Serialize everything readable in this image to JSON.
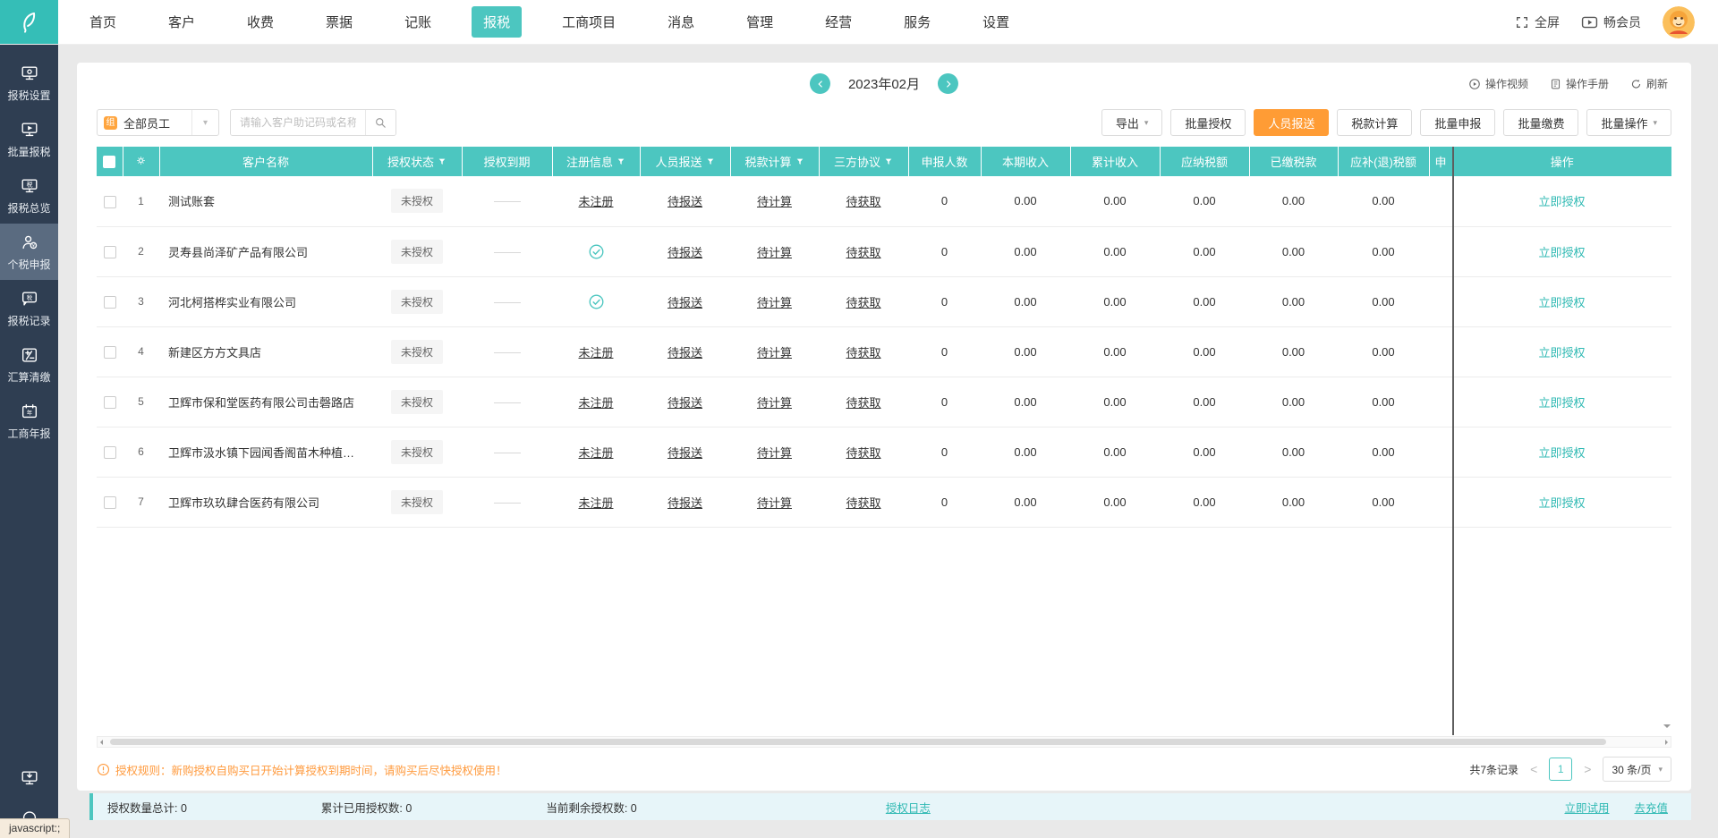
{
  "colors": {
    "accent": "#4CC6C0",
    "sidebar": "#2F3E52",
    "orange": "#FF9C35",
    "link_teal": "#2FB9B3",
    "notice_orange": "#FF9A3D",
    "footer_bg": "#E7F5F9"
  },
  "topnav": {
    "menu": [
      {
        "label": "首页",
        "active": false
      },
      {
        "label": "客户",
        "active": false
      },
      {
        "label": "收费",
        "active": false
      },
      {
        "label": "票据",
        "active": false
      },
      {
        "label": "记账",
        "active": false
      },
      {
        "label": "报税",
        "active": true
      },
      {
        "label": "工商项目",
        "active": false
      },
      {
        "label": "消息",
        "active": false
      },
      {
        "label": "管理",
        "active": false
      },
      {
        "label": "经营",
        "active": false
      },
      {
        "label": "服务",
        "active": false
      },
      {
        "label": "设置",
        "active": false
      }
    ],
    "fullscreen_label": "全屏",
    "member_label": "畅会员"
  },
  "sidebar": {
    "items": [
      {
        "label": "报税设置",
        "icon": "monitor-gear-icon",
        "active": false
      },
      {
        "label": "批量报税",
        "icon": "monitor-cursor-icon",
        "active": false
      },
      {
        "label": "报税总览",
        "icon": "monitor-tax-icon",
        "active": false
      },
      {
        "label": "个税申报",
        "icon": "person-tax-icon",
        "active": true
      },
      {
        "label": "报税记录",
        "icon": "tax-bubble-icon",
        "active": false
      },
      {
        "label": "汇算清缴",
        "icon": "plus-minus-icon",
        "active": false
      },
      {
        "label": "工商年报",
        "icon": "calendar-year-icon",
        "active": false
      }
    ],
    "bottom_icons": [
      {
        "icon": "monitor-download-icon"
      },
      {
        "icon": "headset-icon"
      }
    ]
  },
  "content": {
    "period": "2023年02月",
    "links": [
      {
        "label": "操作视频",
        "icon": "play-circle-icon"
      },
      {
        "label": "操作手册",
        "icon": "manual-icon"
      },
      {
        "label": "刷新",
        "icon": "refresh-icon"
      }
    ],
    "toolbar": {
      "employee_filter": "全部员工",
      "employee_badge": "组",
      "search_placeholder": "请输入客户助记码或名称",
      "buttons": [
        {
          "label": "导出",
          "caret": true,
          "primary": false
        },
        {
          "label": "批量授权",
          "caret": false,
          "primary": false
        },
        {
          "label": "人员报送",
          "caret": false,
          "primary": true
        },
        {
          "label": "税款计算",
          "caret": false,
          "primary": false
        },
        {
          "label": "批量申报",
          "caret": false,
          "primary": false
        },
        {
          "label": "批量缴费",
          "caret": false,
          "primary": false
        },
        {
          "label": "批量操作",
          "caret": true,
          "primary": false
        }
      ]
    },
    "table": {
      "headers": [
        {
          "label": "客户名称",
          "filter": false
        },
        {
          "label": "授权状态",
          "filter": true
        },
        {
          "label": "授权到期",
          "filter": false
        },
        {
          "label": "注册信息",
          "filter": true
        },
        {
          "label": "人员报送",
          "filter": true
        },
        {
          "label": "税款计算",
          "filter": true
        },
        {
          "label": "三方协议",
          "filter": true
        },
        {
          "label": "申报人数",
          "filter": false
        },
        {
          "label": "本期收入",
          "filter": false
        },
        {
          "label": "累计收入",
          "filter": false
        },
        {
          "label": "应纳税额",
          "filter": false
        },
        {
          "label": "已缴税款",
          "filter": false
        },
        {
          "label": "应补(退)税额",
          "filter": false
        },
        {
          "label": "申",
          "filter": false
        },
        {
          "label": "操作",
          "filter": false
        }
      ],
      "rows": [
        {
          "num": "1",
          "name": "测试账套",
          "auth_status": "未授权",
          "registered": false,
          "registration": "未注册",
          "staff_report": "待报送",
          "tax_calc": "待计算",
          "agreement": "待获取",
          "declare_count": "0",
          "period_income": "0.00",
          "total_income": "0.00",
          "tax_payable": "0.00",
          "tax_paid": "0.00",
          "tax_refund": "0.00",
          "action": "立即授权"
        },
        {
          "num": "2",
          "name": "灵寿县尚泽矿产品有限公司",
          "auth_status": "未授权",
          "registered": true,
          "registration": "",
          "staff_report": "待报送",
          "tax_calc": "待计算",
          "agreement": "待获取",
          "declare_count": "0",
          "period_income": "0.00",
          "total_income": "0.00",
          "tax_payable": "0.00",
          "tax_paid": "0.00",
          "tax_refund": "0.00",
          "action": "立即授权"
        },
        {
          "num": "3",
          "name": "河北柯搭桦实业有限公司",
          "auth_status": "未授权",
          "registered": true,
          "registration": "",
          "staff_report": "待报送",
          "tax_calc": "待计算",
          "agreement": "待获取",
          "declare_count": "0",
          "period_income": "0.00",
          "total_income": "0.00",
          "tax_payable": "0.00",
          "tax_paid": "0.00",
          "tax_refund": "0.00",
          "action": "立即授权"
        },
        {
          "num": "4",
          "name": "新建区方方文具店",
          "auth_status": "未授权",
          "registered": false,
          "registration": "未注册",
          "staff_report": "待报送",
          "tax_calc": "待计算",
          "agreement": "待获取",
          "declare_count": "0",
          "period_income": "0.00",
          "total_income": "0.00",
          "tax_payable": "0.00",
          "tax_paid": "0.00",
          "tax_refund": "0.00",
          "action": "立即授权"
        },
        {
          "num": "5",
          "name": "卫辉市保和堂医药有限公司击磬路店",
          "auth_status": "未授权",
          "registered": false,
          "registration": "未注册",
          "staff_report": "待报送",
          "tax_calc": "待计算",
          "agreement": "待获取",
          "declare_count": "0",
          "period_income": "0.00",
          "total_income": "0.00",
          "tax_payable": "0.00",
          "tax_paid": "0.00",
          "tax_refund": "0.00",
          "action": "立即授权"
        },
        {
          "num": "6",
          "name": "卫辉市汲水镇下园闻香阁苗木种植家庭...",
          "auth_status": "未授权",
          "registered": false,
          "registration": "未注册",
          "staff_report": "待报送",
          "tax_calc": "待计算",
          "agreement": "待获取",
          "declare_count": "0",
          "period_income": "0.00",
          "total_income": "0.00",
          "tax_payable": "0.00",
          "tax_paid": "0.00",
          "tax_refund": "0.00",
          "action": "立即授权"
        },
        {
          "num": "7",
          "name": "卫辉市玖玖肆合医药有限公司",
          "auth_status": "未授权",
          "registered": false,
          "registration": "未注册",
          "staff_report": "待报送",
          "tax_calc": "待计算",
          "agreement": "待获取",
          "declare_count": "0",
          "period_income": "0.00",
          "total_income": "0.00",
          "tax_payable": "0.00",
          "tax_paid": "0.00",
          "tax_refund": "0.00",
          "action": "立即授权"
        }
      ]
    },
    "notice": "授权规则：新购授权自购买日开始计算授权到期时间，请购买后尽快授权使用！",
    "pagination": {
      "total": "共7条记录",
      "prev": "<",
      "page": "1",
      "next": ">",
      "page_size": "30 条/页"
    },
    "footer": {
      "stats": [
        {
          "label": "授权数量总计: 0"
        },
        {
          "label": "累计已用授权数: 0"
        },
        {
          "label": "当前剩余授权数: 0"
        }
      ],
      "log_link": "授权日志",
      "try_link": "立即试用",
      "recharge_link": "去充值"
    }
  },
  "statusbar": "javascript:;"
}
